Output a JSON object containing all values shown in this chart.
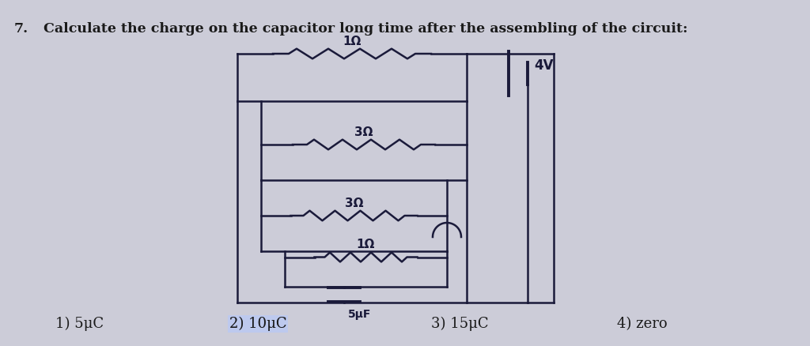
{
  "title_num": "7.",
  "title_text": "Calculate the charge on the capacitor long time after the assembling of the circuit:",
  "title_fontsize": 12.5,
  "background_color": "#ccccd8",
  "answer_options": [
    "1) 5μC",
    "2) 10μC",
    "3) 15μC",
    "4) zero"
  ],
  "answer_fontsize": 13,
  "highlighted_answer": 1,
  "resistor_labels": [
    "1Ω",
    "3Ω",
    "3Ω",
    "1Ω"
  ],
  "battery_label": "4V",
  "capacitor_label": "5μF",
  "circuit_color": "#1a1a3a",
  "text_color": "#1a1a1a"
}
